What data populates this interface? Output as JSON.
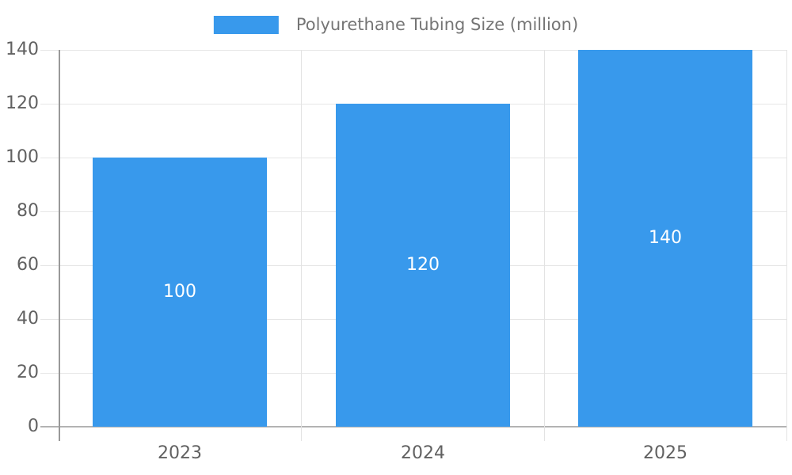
{
  "chart_data": {
    "type": "bar",
    "legend": "Polyurethane Tubing Size (million)",
    "legend_position": "top-center",
    "categories": [
      "2023",
      "2024",
      "2025"
    ],
    "values": [
      100,
      120,
      140
    ],
    "data_labels": [
      "100",
      "120",
      "140"
    ],
    "y_ticks": [
      0,
      20,
      40,
      60,
      80,
      100,
      120,
      140
    ],
    "ylim": [
      0,
      140
    ],
    "grid": true,
    "xlabel": "",
    "ylabel": "",
    "colors": {
      "bar": "#3899ec",
      "gridline": "#e6e6e6",
      "baseline": "#b3b3b3",
      "axis_line": "#999999",
      "category_line": "#e3e3e3",
      "axis_text": "#616161",
      "legend_text": "#757575",
      "bar_label_text": "#ffffff",
      "background": "#ffffff"
    }
  }
}
